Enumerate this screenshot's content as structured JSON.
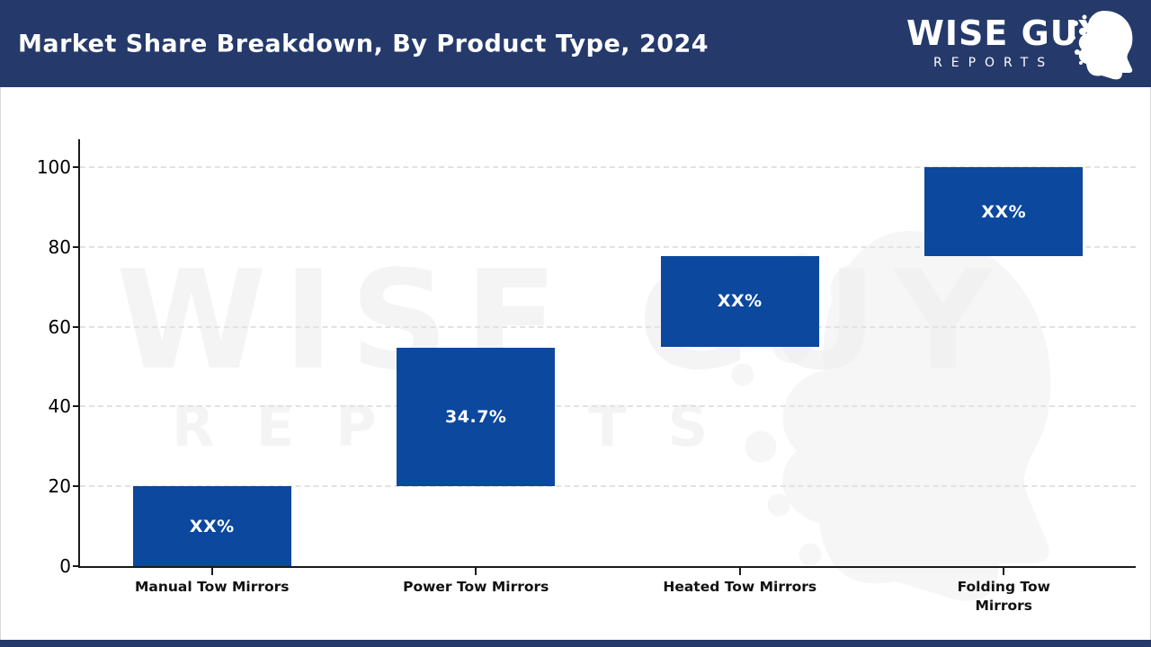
{
  "header": {
    "title": "Market Share Breakdown, By Product Type, 2024",
    "bg_color": "#253a6b",
    "logo": {
      "line1": "WISE GUY",
      "line2": "REPORTS"
    }
  },
  "watermark": {
    "line1": "WISE GUY",
    "line2": "REPORTS"
  },
  "chart_data": {
    "type": "bar",
    "subtype": "floating-segment-waterfall",
    "title": "Market Share Breakdown, By Product Type, 2024",
    "categories": [
      "Manual Tow Mirrors",
      "Power Tow Mirrors",
      "Heated Tow Mirrors",
      "Folding Tow\nMirrors"
    ],
    "segments": [
      {
        "category": "Manual Tow Mirrors",
        "start": 0,
        "end": 20,
        "label": "XX%"
      },
      {
        "category": "Power Tow Mirrors",
        "start": 20,
        "end": 54.7,
        "label": "34.7%"
      },
      {
        "category": "Heated Tow Mirrors",
        "start": 55,
        "end": 77.7,
        "label": "XX%"
      },
      {
        "category": "Folding Tow Mirrors",
        "start": 77.7,
        "end": 100,
        "label": "XX%"
      }
    ],
    "xlabel": "",
    "ylabel": "",
    "ylim": [
      0,
      100
    ],
    "yticks": [
      0,
      20,
      40,
      60,
      80,
      100
    ],
    "bar_color": "#0b489e",
    "grid": "horizontal-dashed",
    "legend": false
  }
}
